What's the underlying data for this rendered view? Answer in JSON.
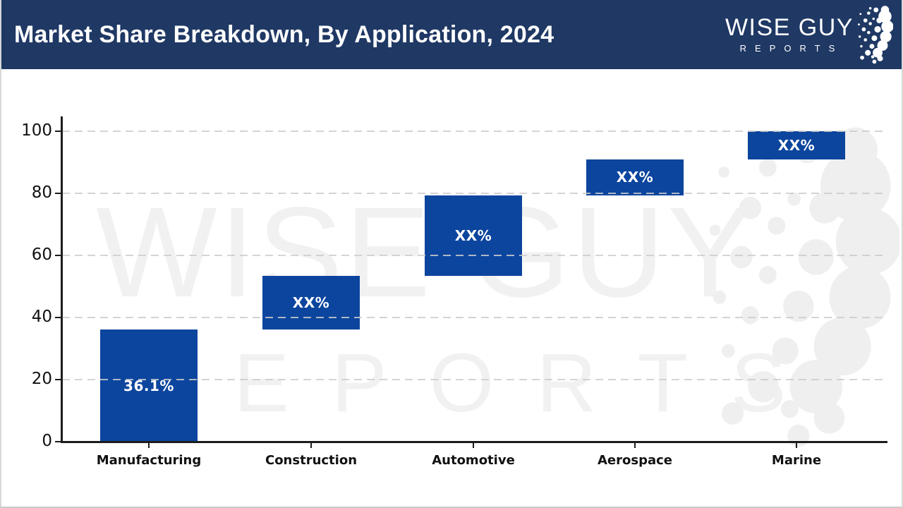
{
  "header": {
    "title": "Market Share Breakdown, By Application, 2024",
    "bg_color": "#1f3864",
    "logo": {
      "line1": "WISE GUY",
      "line2": "REPORTS"
    }
  },
  "watermark": {
    "line1": "WISE GUY",
    "line2": "REPORTS"
  },
  "chart_data": {
    "type": "bar",
    "subtype": "waterfall",
    "title": "Market Share Breakdown, By Application, 2024",
    "categories": [
      "Manufacturing",
      "Construction",
      "Automotive",
      "Aerospace",
      "Marine"
    ],
    "segments": [
      {
        "category": "Manufacturing",
        "start": 0,
        "end": 36.1,
        "label": "36.1%"
      },
      {
        "category": "Construction",
        "start": 36.1,
        "end": 53.5,
        "label": "XX%"
      },
      {
        "category": "Automotive",
        "start": 53.5,
        "end": 79.4,
        "label": "XX%"
      },
      {
        "category": "Aerospace",
        "start": 79.4,
        "end": 91.0,
        "label": "XX%"
      },
      {
        "category": "Marine",
        "start": 91.0,
        "end": 100,
        "label": "XX%"
      }
    ],
    "yticks": [
      0,
      20,
      40,
      60,
      80,
      100
    ],
    "ylim": [
      0,
      105
    ],
    "xlabel": "",
    "ylabel": "",
    "grid": "horizontal-dashed",
    "legend": "none",
    "bar_color": "#0c459e",
    "bar_label_color": "#ffffff",
    "axis_color": "#1c1c1c",
    "grid_color": "#cccccc"
  }
}
